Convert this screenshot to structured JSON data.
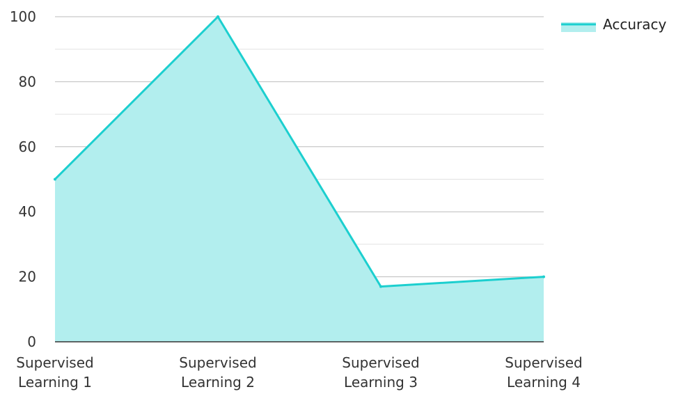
{
  "chart_data": {
    "type": "area",
    "categories": [
      [
        "Supervised",
        "Learning 1"
      ],
      [
        "Supervised",
        "Learning 2"
      ],
      [
        "Supervised",
        "Learning 3"
      ],
      [
        "Supervised",
        "Learning 4"
      ]
    ],
    "series": [
      {
        "name": "Accuracy",
        "values": [
          50,
          100,
          17,
          20
        ]
      }
    ],
    "ylim": [
      0,
      100
    ],
    "yticks": [
      0,
      20,
      40,
      60,
      80,
      100
    ],
    "grid": true,
    "legend": "top-right",
    "colors": {
      "line": "#1ccfcf",
      "fill": "#b2eeee",
      "grid_major": "#bbbbbb",
      "grid_minor": "#e2e2e2",
      "axis": "#333333"
    }
  }
}
